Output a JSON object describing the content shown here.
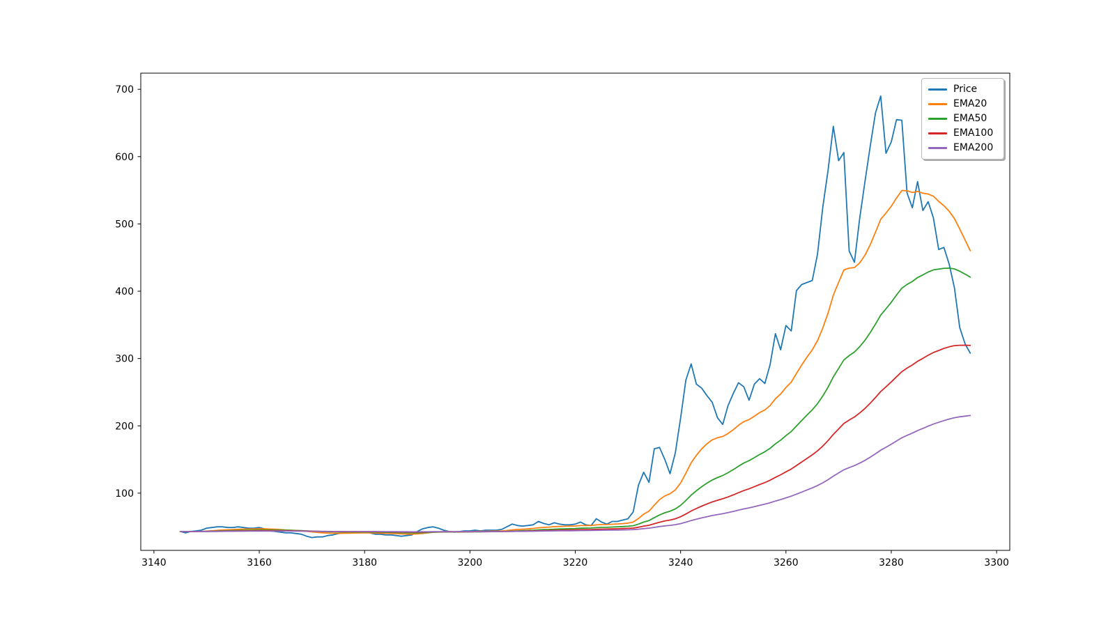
{
  "chart_data": {
    "type": "line",
    "title": "",
    "xlabel": "",
    "ylabel": "",
    "grid": false,
    "x_range": {
      "start": 3145,
      "end": 3295,
      "step": 1
    },
    "axes": {
      "xlim": [
        3137.5,
        3302.5
      ],
      "ylim": [
        15,
        724
      ],
      "xticks": [
        3140,
        3160,
        3180,
        3200,
        3220,
        3240,
        3260,
        3280,
        3300
      ],
      "yticks": [
        100,
        200,
        300,
        400,
        500,
        600,
        700
      ],
      "spine_color": "#000000",
      "tick_label_color": "#000000"
    },
    "legend": {
      "position": "upper right",
      "labels": [
        "Price",
        "EMA20",
        "EMA50",
        "EMA100",
        "EMA200"
      ]
    },
    "series": [
      {
        "name": "Price",
        "color": "#1f77b4",
        "kind": "raw",
        "values": [
          43,
          41,
          43,
          44,
          45,
          48,
          49,
          50,
          50,
          49,
          49,
          50,
          49,
          48,
          48,
          49,
          47,
          44,
          43,
          42,
          41,
          41,
          40,
          39,
          36,
          34,
          35,
          35,
          37,
          38,
          40,
          41,
          41,
          43,
          42,
          42,
          41,
          39,
          39,
          38,
          38,
          37,
          36,
          37,
          38,
          43,
          47,
          49,
          50,
          48,
          45,
          43,
          42,
          43,
          44,
          44,
          45,
          44,
          45,
          45,
          45,
          46,
          50,
          54,
          52,
          51,
          52,
          53,
          58,
          55,
          53,
          56,
          54,
          53,
          53,
          54,
          57,
          53,
          52,
          62,
          57,
          54,
          58,
          58,
          60,
          62,
          72,
          112,
          131,
          116,
          166,
          168,
          150,
          129,
          160,
          212,
          268,
          292,
          262,
          256,
          245,
          235,
          212,
          202,
          230,
          248,
          264,
          258,
          238,
          262,
          270,
          263,
          291,
          337,
          313,
          349,
          341,
          401,
          410,
          413,
          416,
          455,
          525,
          580,
          645,
          594,
          606,
          460,
          443,
          508,
          563,
          615,
          665,
          690,
          605,
          622,
          655,
          654,
          546,
          524,
          563,
          520,
          533,
          509,
          462,
          465,
          440,
          405,
          346,
          322,
          308
        ]
      },
      {
        "name": "EMA20",
        "color": "#ff7f0e",
        "kind": "ema",
        "span": 20,
        "derived_from": "Price"
      },
      {
        "name": "EMA50",
        "color": "#2ca02c",
        "kind": "ema",
        "span": 50,
        "derived_from": "Price"
      },
      {
        "name": "EMA100",
        "color": "#d62728",
        "kind": "ema",
        "span": 100,
        "derived_from": "Price"
      },
      {
        "name": "EMA200",
        "color": "#9467bd",
        "kind": "ema",
        "span": 200,
        "derived_from": "Price"
      }
    ]
  }
}
